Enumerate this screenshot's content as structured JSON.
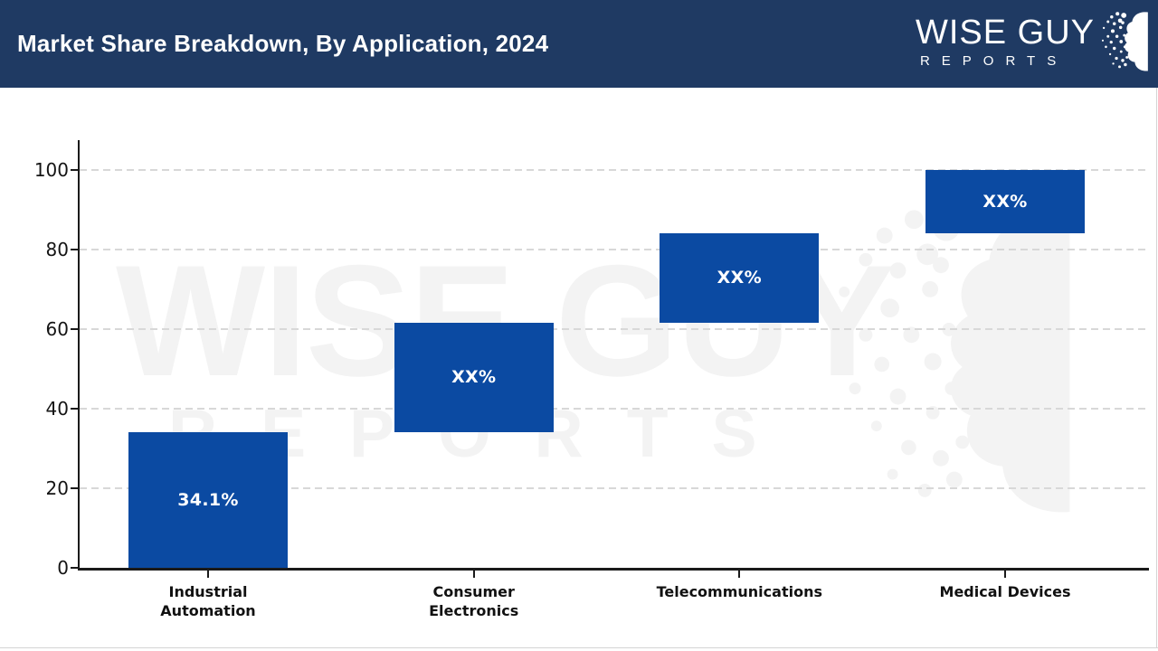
{
  "header": {
    "title": "Market Share Breakdown, By Application, 2024",
    "logo": {
      "line1": "WISE GUY",
      "line2": "REPORTS"
    }
  },
  "watermark": {
    "line1": "WISE GUY",
    "line2": "REPORTS"
  },
  "chart_data": {
    "type": "bar",
    "subtype": "waterfall-segmented-market-share",
    "title": "Market Share Breakdown, By Application, 2024",
    "categories": [
      "Industrial Automation",
      "Consumer Electronics",
      "Telecommunications",
      "Medical Devices"
    ],
    "category_lines": [
      [
        "Industrial",
        "Automation"
      ],
      [
        "Consumer",
        "Electronics"
      ],
      [
        "Telecommunications"
      ],
      [
        "Medical Devices"
      ]
    ],
    "segments": [
      {
        "category": "Industrial Automation",
        "label": "34.1%",
        "start": 0,
        "end": 34.1
      },
      {
        "category": "Consumer Electronics",
        "label": "XX%",
        "start": 34.1,
        "end": 61.6
      },
      {
        "category": "Telecommunications",
        "label": "XX%",
        "start": 61.6,
        "end": 84.1
      },
      {
        "category": "Medical Devices",
        "label": "XX%",
        "start": 84.1,
        "end": 100
      }
    ],
    "xlabel": "",
    "ylabel": "",
    "ylim": [
      0,
      100
    ],
    "yticks": [
      0,
      20,
      40,
      60,
      80,
      100
    ],
    "grid": "horizontal dashed",
    "legend": "none",
    "colors": {
      "bar": "#0B4AA2",
      "bar_label": "#FFFFFF",
      "header_bg": "#1F3A63",
      "header_text": "#FFFFFF",
      "gridline": "#D8D8D8",
      "axis": "#1A1A1A",
      "watermark": "#F3F3F3"
    }
  }
}
